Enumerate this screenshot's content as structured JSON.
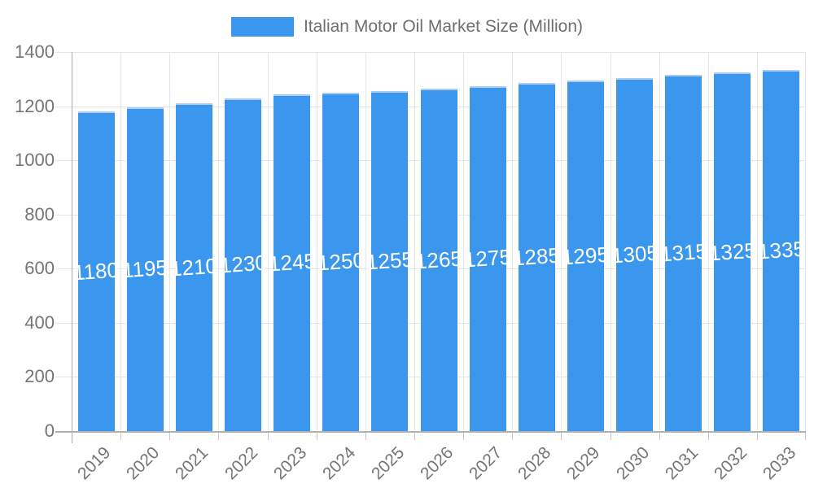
{
  "legend": {
    "label": "Italian Motor Oil Market Size (Million)"
  },
  "chart_data": {
    "type": "bar",
    "title": "Italian Motor Oil Market Size (Million)",
    "categories": [
      "2019",
      "2020",
      "2021",
      "2022",
      "2023",
      "2024",
      "2025",
      "2026",
      "2027",
      "2028",
      "2029",
      "2030",
      "2031",
      "2032",
      "2033"
    ],
    "values": [
      1180,
      1195,
      1210,
      1230,
      1245,
      1250,
      1255,
      1265,
      1275,
      1285,
      1295,
      1305,
      1315,
      1325,
      1335
    ],
    "xlabel": "",
    "ylabel": "",
    "ylim": [
      0,
      1400
    ],
    "yticks": [
      0,
      200,
      400,
      600,
      800,
      1000,
      1200,
      1400
    ],
    "grid": true,
    "legend_position": "top",
    "bar_color": "#3b97ed",
    "bar_top_edge_color": "#a9cdf4",
    "bar_label_color": "#ffffff",
    "axis_text_color": "#757575",
    "legend_text_color": "#6e6e6e",
    "gridline_color": "#e6e6e6",
    "axis_line_color": "#b0b0b0",
    "background_color": "#ffffff"
  }
}
